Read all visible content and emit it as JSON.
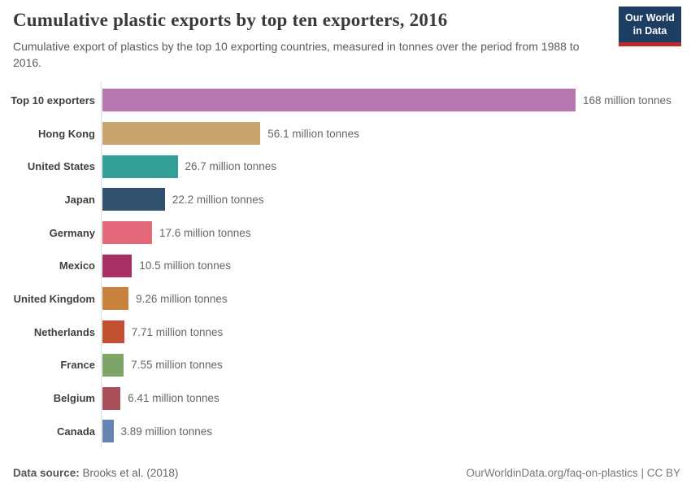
{
  "header": {
    "title": "Cumulative plastic exports by top ten exporters, 2016",
    "subtitle": "Cumulative export of plastics by the top 10 exporting countries, measured in tonnes over the period from 1988 to 2016.",
    "logo": {
      "line1": "Our World",
      "line2": "in Data",
      "bg_color": "#1d3d63",
      "accent_color": "#c0272d"
    }
  },
  "chart_data": {
    "type": "bar",
    "orientation": "horizontal",
    "title": "Cumulative plastic exports by top ten exporters, 2016",
    "unit": "million tonnes",
    "xlim": [
      0,
      168
    ],
    "grid": false,
    "legend": "none",
    "categories": [
      "Top 10 exporters",
      "Hong Kong",
      "United States",
      "Japan",
      "Germany",
      "Mexico",
      "United Kingdom",
      "Netherlands",
      "France",
      "Belgium",
      "Canada"
    ],
    "values": [
      168,
      56.1,
      26.7,
      22.2,
      17.6,
      10.5,
      9.26,
      7.71,
      7.55,
      6.41,
      3.89
    ],
    "value_labels": [
      "168 million tonnes",
      "56.1 million tonnes",
      "26.7 million tonnes",
      "22.2 million tonnes",
      "17.6 million tonnes",
      "10.5 million tonnes",
      "9.26 million tonnes",
      "7.71 million tonnes",
      "7.55 million tonnes",
      "6.41 million tonnes",
      "3.89 million tonnes"
    ],
    "bar_colors": [
      "#b577b0",
      "#c9a46f",
      "#339e93",
      "#2f506f",
      "#e3687a",
      "#a92e66",
      "#c8823e",
      "#c05030",
      "#7ea468",
      "#a84f58",
      "#6783b2"
    ],
    "axis_color": "#dedede"
  },
  "footer": {
    "source_label": "Data source:",
    "source_value": " Brooks et al. (2018)",
    "attribution": "OurWorldinData.org/faq-on-plastics | CC BY"
  }
}
